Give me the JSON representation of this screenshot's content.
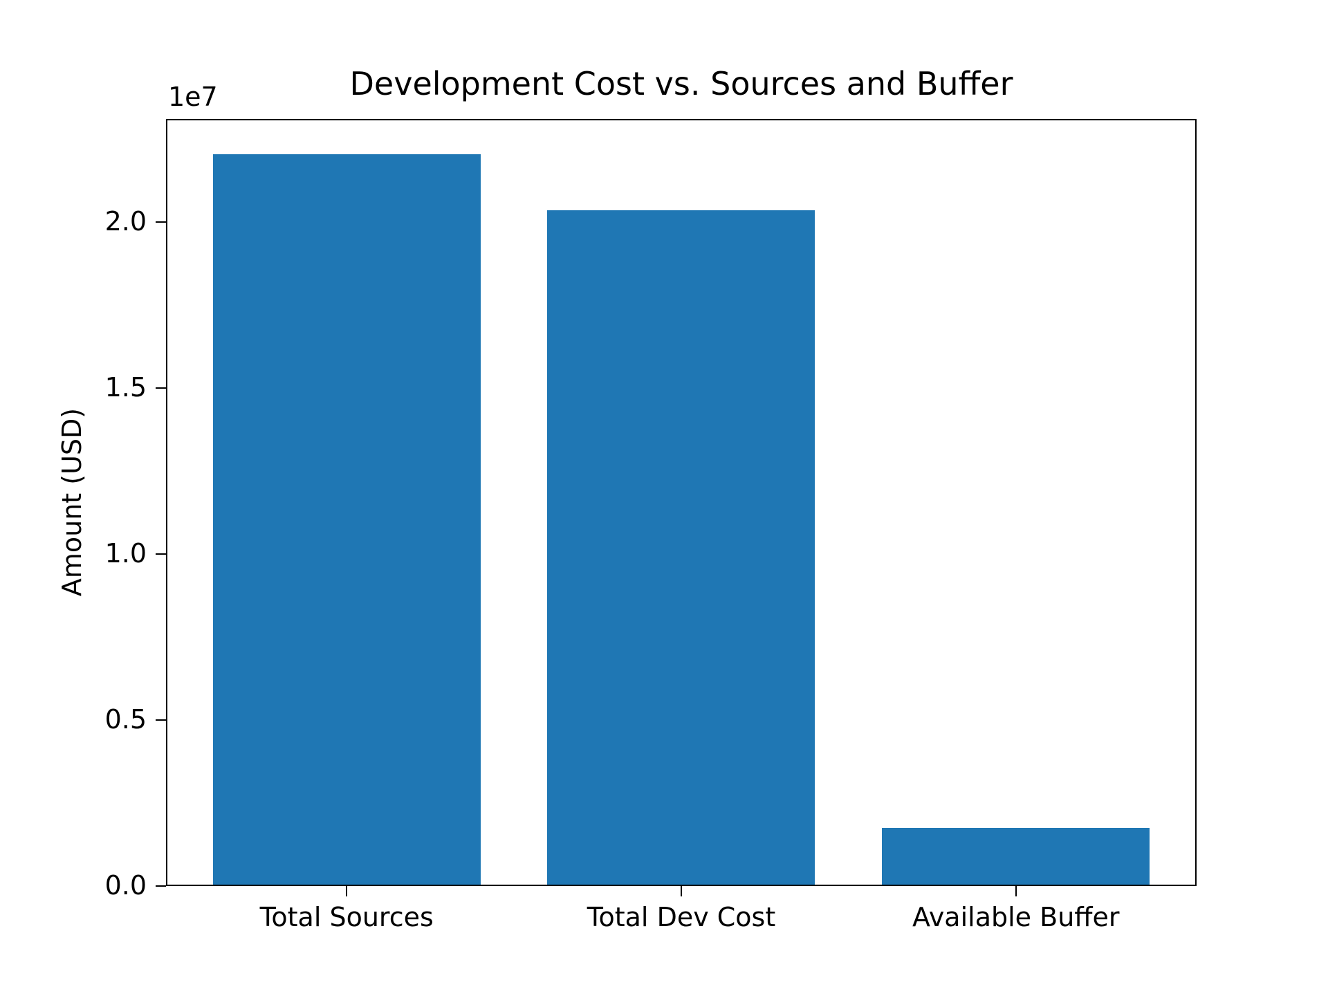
{
  "chart_data": {
    "type": "bar",
    "title": "Development Cost vs. Sources and Buffer",
    "xlabel": "",
    "ylabel": "Amount (USD)",
    "categories": [
      "Total Sources",
      "Total Dev Cost",
      "Available Buffer"
    ],
    "values": [
      22000000,
      20300000,
      1700000
    ],
    "ylim": [
      0,
      23100000
    ],
    "yticks": {
      "values": [
        0,
        5000000,
        10000000,
        15000000,
        20000000
      ],
      "labels": [
        "0.0",
        "0.5",
        "1.0",
        "1.5",
        "2.0"
      ],
      "offset": "1e7"
    },
    "bar_color": "#1f77b4",
    "axis_color": "#000000",
    "background_color": "#ffffff",
    "grid": false,
    "legend_position": "none"
  }
}
